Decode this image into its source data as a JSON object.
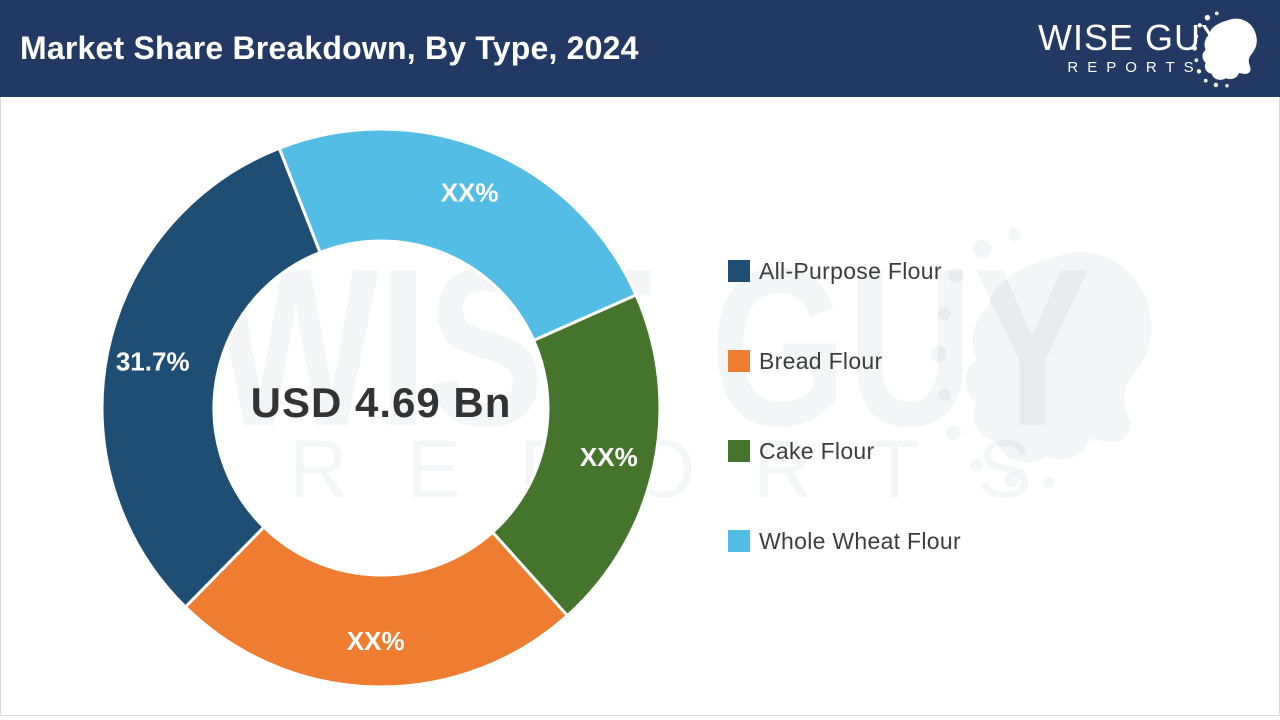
{
  "header": {
    "title": "Market Share Breakdown, By Type, 2024",
    "bg_color": "#223963",
    "logo": {
      "line1": "WISE GUY",
      "line2": "REPORTS"
    }
  },
  "watermark": {
    "line1": "WISE GUY",
    "line2": "REPORTS"
  },
  "chart_data": {
    "type": "pie",
    "subtype": "donut",
    "title": "Market Share Breakdown, By Type, 2024",
    "center_label": "USD 4.69 Bn",
    "start_angle_deg": 224.5,
    "legend_position": "right",
    "segments": [
      {
        "label": "All-Purpose Flour",
        "display": "31.7%",
        "percent": 31.7,
        "color": "#1F4E74"
      },
      {
        "label": "Whole Wheat Flour",
        "display": "XX%",
        "percent": 24.3,
        "color": "#53BDE6"
      },
      {
        "label": "Cake Flour",
        "display": "XX%",
        "percent": 20.0,
        "color": "#45752C"
      },
      {
        "label": "Bread Flour",
        "display": "XX%",
        "percent": 24.0,
        "color": "#EE7D31"
      }
    ],
    "legend": [
      {
        "label": "All-Purpose Flour",
        "color": "#1F4E74"
      },
      {
        "label": "Bread Flour",
        "color": "#EE7D31"
      },
      {
        "label": "Cake Flour",
        "color": "#45752C"
      },
      {
        "label": "Whole Wheat Flour",
        "color": "#53BDE6"
      }
    ]
  }
}
